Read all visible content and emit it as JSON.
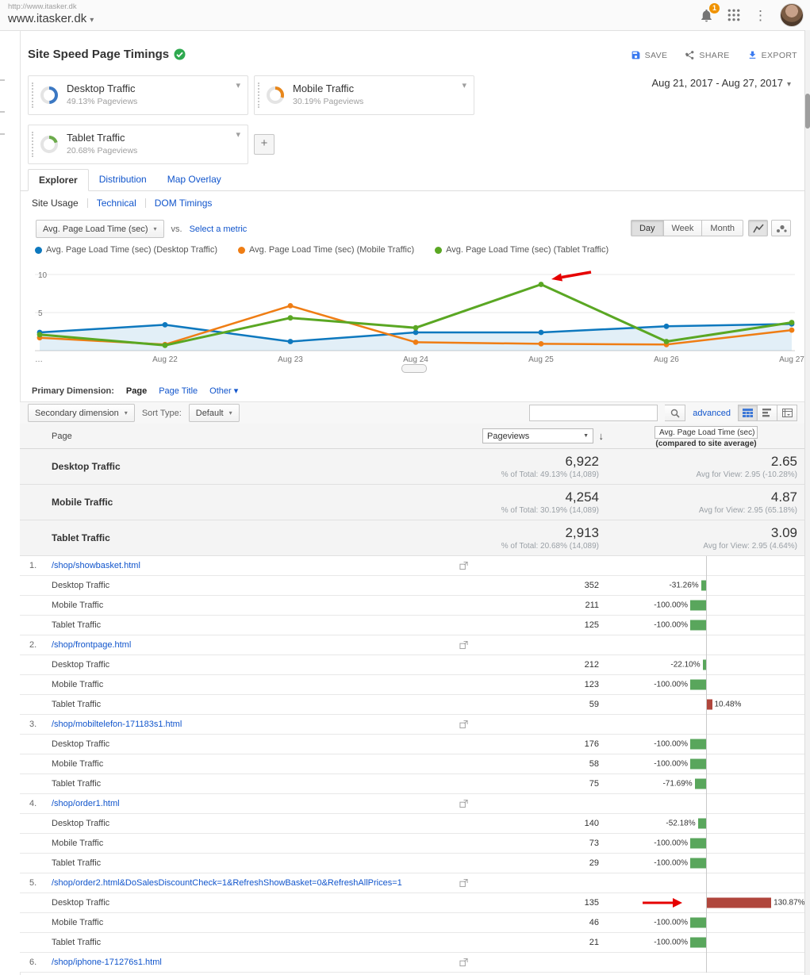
{
  "header": {
    "url": "http://www.itasker.dk",
    "site_name": "www.itasker.dk",
    "notification_count": "1"
  },
  "icons": {
    "notification": "bell-icon",
    "apps": "grid-icon",
    "more": "kebab-menu-icon",
    "account": "avatar",
    "verified": "green-check-icon",
    "save": "save-icon",
    "share": "share-icon",
    "export": "export-icon",
    "search": "magnifier-icon",
    "open_row": "open-in-new-icon",
    "caret": "▾",
    "select_arrow": "▼",
    "sort_desc": "↓",
    "add": "+"
  },
  "page": {
    "title": "Site Speed Page Timings"
  },
  "actions": {
    "save": "SAVE",
    "share": "SHARE",
    "export": "EXPORT"
  },
  "date_range": {
    "label": "Aug 21, 2017 - Aug 27, 2017"
  },
  "segments": [
    {
      "name": "Desktop Traffic",
      "subtitle": "49.13% Pageviews",
      "pct": 49.13,
      "color": "#3b78c3"
    },
    {
      "name": "Mobile Traffic",
      "subtitle": "30.19% Pageviews",
      "pct": 30.19,
      "color": "#e8871c"
    },
    {
      "name": "Tablet Traffic",
      "subtitle": "20.68% Pageviews",
      "pct": 20.68,
      "color": "#6cab4c"
    }
  ],
  "add_segment_label": "+",
  "tabs": {
    "items": [
      "Explorer",
      "Distribution",
      "Map Overlay"
    ],
    "active": "Explorer"
  },
  "subnav": {
    "items": [
      "Site Usage",
      "Technical",
      "DOM Timings"
    ],
    "active": "Site Usage"
  },
  "metric_bar": {
    "selected_metric": "Avg. Page Load Time (sec)",
    "vs_label": "vs.",
    "select_metric_label": "Select a metric"
  },
  "granularity": {
    "options": [
      "Day",
      "Week",
      "Month"
    ],
    "active": "Day"
  },
  "chart_data": {
    "type": "line",
    "title": "Avg. Page Load Time (sec) by day",
    "x_labels": [
      "…",
      "Aug 22",
      "Aug 23",
      "Aug 24",
      "Aug 25",
      "Aug 26",
      "Aug 27"
    ],
    "ylim": [
      0,
      10
    ],
    "yticks": [
      5,
      10
    ],
    "grid": true,
    "legend_position": "top",
    "series": [
      {
        "name": "Avg. Page Load Time (sec) (Desktop Traffic)",
        "color": "#0d78be",
        "fill": true,
        "values": [
          2.4,
          3.4,
          1.2,
          2.4,
          2.4,
          3.2,
          3.5
        ]
      },
      {
        "name": "Avg. Page Load Time (sec) (Mobile Traffic)",
        "color": "#ef7d14",
        "fill": false,
        "values": [
          1.7,
          0.8,
          5.9,
          1.1,
          0.9,
          0.8,
          2.7
        ]
      },
      {
        "name": "Avg. Page Load Time (sec) (Tablet Traffic)",
        "color": "#5aa723",
        "fill": false,
        "values": [
          2.1,
          0.7,
          4.3,
          3.0,
          8.7,
          1.2,
          3.7
        ]
      }
    ],
    "annotation": "red arrow pointing at Tablet Traffic peak on Aug 25"
  },
  "dimension_bar": {
    "label": "Primary Dimension:",
    "selected": "Page",
    "links": [
      "Page Title",
      "Other"
    ]
  },
  "toolbar": {
    "secondary_dimension": "Secondary dimension",
    "sort_type_label": "Sort Type:",
    "sort_type_value": "Default",
    "search_value": "",
    "advanced_label": "advanced"
  },
  "colors": {
    "link": "#1155cc",
    "bar_negative": "#59a65c",
    "bar_positive": "#b0463c",
    "annotation_red": "#e60000",
    "badge_orange": "#f09300"
  },
  "table": {
    "col_page": "Page",
    "col_pageviews": "Pageviews",
    "col_metric": "Avg. Page Load Time (sec)",
    "col_metric_sub": "(compared to site average)",
    "summary": [
      {
        "name": "Desktop Traffic",
        "value": "6,922",
        "value_sub": "% of Total: 49.13% (14,089)",
        "metric": "2.65",
        "metric_sub": "Avg for View: 2.95 (-10.28%)"
      },
      {
        "name": "Mobile Traffic",
        "value": "4,254",
        "value_sub": "% of Total: 30.19% (14,089)",
        "metric": "4.87",
        "metric_sub": "Avg for View: 2.95 (65.18%)"
      },
      {
        "name": "Tablet Traffic",
        "value": "2,913",
        "value_sub": "% of Total: 20.68% (14,089)",
        "metric": "3.09",
        "metric_sub": "Avg for View: 2.95 (4.64%)"
      }
    ],
    "rows": [
      {
        "num": "1.",
        "page": "/shop/showbasket.html",
        "subs": [
          {
            "name": "Desktop Traffic",
            "pv": "352",
            "delta": -31.26,
            "label": "-31.26%"
          },
          {
            "name": "Mobile Traffic",
            "pv": "211",
            "delta": -100,
            "label": "-100.00%"
          },
          {
            "name": "Tablet Traffic",
            "pv": "125",
            "delta": -100,
            "label": "-100.00%"
          }
        ]
      },
      {
        "num": "2.",
        "page": "/shop/frontpage.html",
        "subs": [
          {
            "name": "Desktop Traffic",
            "pv": "212",
            "delta": -22.1,
            "label": "-22.10%"
          },
          {
            "name": "Mobile Traffic",
            "pv": "123",
            "delta": -100,
            "label": "-100.00%"
          },
          {
            "name": "Tablet Traffic",
            "pv": "59",
            "delta": 10.48,
            "label": "10.48%"
          }
        ]
      },
      {
        "num": "3.",
        "page": "/shop/mobiltelefon-171183s1.html",
        "subs": [
          {
            "name": "Desktop Traffic",
            "pv": "176",
            "delta": -100,
            "label": "-100.00%"
          },
          {
            "name": "Mobile Traffic",
            "pv": "58",
            "delta": -100,
            "label": "-100.00%"
          },
          {
            "name": "Tablet Traffic",
            "pv": "75",
            "delta": -71.69,
            "label": "-71.69%"
          }
        ]
      },
      {
        "num": "4.",
        "page": "/shop/order1.html",
        "subs": [
          {
            "name": "Desktop Traffic",
            "pv": "140",
            "delta": -52.18,
            "label": "-52.18%"
          },
          {
            "name": "Mobile Traffic",
            "pv": "73",
            "delta": -100,
            "label": "-100.00%"
          },
          {
            "name": "Tablet Traffic",
            "pv": "29",
            "delta": -100,
            "label": "-100.00%"
          }
        ]
      },
      {
        "num": "5.",
        "page": "/shop/order2.html&DoSalesDiscountCheck=1&RefreshShowBasket=0&RefreshAllPrices=1",
        "subs": [
          {
            "name": "Desktop Traffic",
            "pv": "135",
            "delta": 130.87,
            "label": "130.87%",
            "arrow": true
          },
          {
            "name": "Mobile Traffic",
            "pv": "46",
            "delta": -100,
            "label": "-100.00%"
          },
          {
            "name": "Tablet Traffic",
            "pv": "21",
            "delta": -100,
            "label": "-100.00%"
          }
        ]
      },
      {
        "num": "6.",
        "page": "/shop/iphone-171276s1.html",
        "subs": []
      }
    ]
  }
}
